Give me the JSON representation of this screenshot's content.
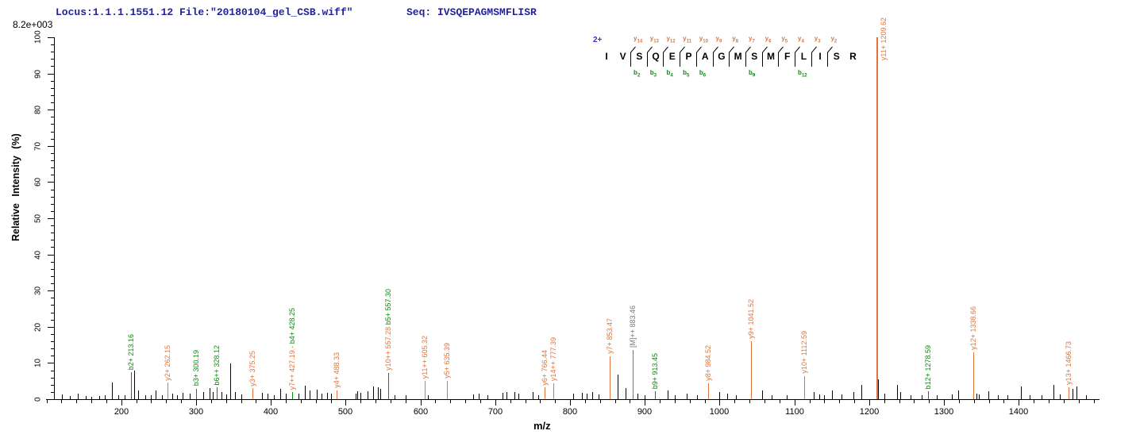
{
  "header": {
    "locus_file": "Locus:1.1.1.1551.12 File:\"20180104_gel_CSB.wiff\"",
    "seq": "Seq: IVSQEPAGMSMFLISR",
    "intensity_scale": "8.2e+003"
  },
  "peptide": {
    "charge": "2+",
    "residues": [
      "I",
      "V",
      "S",
      "Q",
      "E",
      "P",
      "A",
      "G",
      "M",
      "S",
      "M",
      "F",
      "L",
      "I",
      "S",
      "R"
    ],
    "y_ions": [
      {
        "site": 2,
        "num": "14"
      },
      {
        "site": 3,
        "num": "13"
      },
      {
        "site": 4,
        "num": "12"
      },
      {
        "site": 5,
        "num": "11"
      },
      {
        "site": 6,
        "num": "10"
      },
      {
        "site": 7,
        "num": "9"
      },
      {
        "site": 8,
        "num": "8"
      },
      {
        "site": 9,
        "num": "7"
      },
      {
        "site": 10,
        "num": "6"
      },
      {
        "site": 11,
        "num": "5"
      },
      {
        "site": 12,
        "num": "4"
      },
      {
        "site": 13,
        "num": "3"
      },
      {
        "site": 14,
        "num": "2"
      }
    ],
    "b_ions": [
      {
        "site": 2,
        "num": "2"
      },
      {
        "site": 3,
        "num": "3"
      },
      {
        "site": 4,
        "num": "4"
      },
      {
        "site": 5,
        "num": "5"
      },
      {
        "site": 6,
        "num": "6"
      },
      {
        "site": 9,
        "num": "9"
      },
      {
        "site": 12,
        "num": "12"
      }
    ]
  },
  "chart_data": {
    "type": "bar",
    "xlabel": "m/z",
    "ylabel": "Relative Intensity (%)",
    "x_axis": {
      "min": 100,
      "max": 1508,
      "major_step": 100,
      "label_min": 200,
      "label_max": 1400,
      "minor_step": 20
    },
    "y_axis": {
      "min": 0,
      "max": 100,
      "major_step": 10,
      "minor_step": 2
    },
    "legend": "none",
    "grid": false,
    "colors": {
      "y": "#E0743C",
      "b": "#0E8A0E",
      "precursor": "#777777",
      "unassigned": "#000000"
    },
    "peaks": [
      {
        "mz": 213.16,
        "intensity": 7.5,
        "type": "b",
        "label": "b2+ 213.16"
      },
      {
        "mz": 262.15,
        "intensity": 4.5,
        "type": "y",
        "label": "y2+ 262.15"
      },
      {
        "mz": 300.19,
        "intensity": 2.9,
        "type": "b",
        "label": "b3+ 300.19"
      },
      {
        "mz": 328.12,
        "intensity": 3.2,
        "type": "b",
        "label": "b6++ 328.12"
      },
      {
        "mz": 375.25,
        "intensity": 3.0,
        "type": "y",
        "label": "y3+ 375.25"
      },
      {
        "mz": 428.25,
        "intensity": 2.0,
        "type": "b",
        "label_parts": [
          {
            "text": "y7++ 427.19 - ",
            "type": "y"
          },
          {
            "text": "b4+ 428.25",
            "type": "b"
          }
        ]
      },
      {
        "mz": 488.33,
        "intensity": 2.5,
        "type": "y",
        "label": "y4+ 488.33"
      },
      {
        "mz": 557.3,
        "intensity": 7.2,
        "type": "b",
        "label_parts": [
          {
            "text": "y10++ 557.28 ",
            "type": "y"
          },
          {
            "text": "b5+ 557.30",
            "type": "b"
          }
        ]
      },
      {
        "mz": 605.32,
        "intensity": 5.0,
        "type": "y",
        "label": "y11++ 605.32"
      },
      {
        "mz": 635.39,
        "intensity": 5.0,
        "type": "y",
        "label": "y5+ 635.39"
      },
      {
        "mz": 766.44,
        "intensity": 3.2,
        "type": "y",
        "label": "y6+ 766.44"
      },
      {
        "mz": 777.39,
        "intensity": 4.3,
        "type": "y",
        "label": "y14++ 777.39"
      },
      {
        "mz": 853.47,
        "intensity": 11.8,
        "type": "y",
        "label": "y7+ 853.47"
      },
      {
        "mz": 883.46,
        "intensity": 13.6,
        "type": "precursor",
        "label": "[M]++ 883.46"
      },
      {
        "mz": 913.45,
        "intensity": 2.2,
        "type": "b",
        "label": "b9+ 913.45"
      },
      {
        "mz": 984.52,
        "intensity": 4.4,
        "type": "y",
        "label": "y8+ 984.52"
      },
      {
        "mz": 1041.52,
        "intensity": 16.0,
        "type": "y",
        "label": "y9+ 1041.52"
      },
      {
        "mz": 1112.59,
        "intensity": 6.4,
        "type": "y",
        "label": "y10+ 1112.59"
      },
      {
        "mz": 1209.62,
        "intensity": 100.0,
        "type": "y",
        "label": "y11+ 1209.62",
        "anchor": "top",
        "width": 2
      },
      {
        "mz": 1278.59,
        "intensity": 2.2,
        "type": "b",
        "label": "b12+ 1278.59"
      },
      {
        "mz": 1338.66,
        "intensity": 13.0,
        "type": "y",
        "label": "y12+ 1338.66"
      },
      {
        "mz": 1466.73,
        "intensity": 3.3,
        "type": "y",
        "label": "y13+ 1466.73"
      }
    ],
    "unassigned_peaks": [
      [
        110,
        0.8
      ],
      [
        121,
        1.3
      ],
      [
        131,
        0.8
      ],
      [
        142,
        1.6
      ],
      [
        152,
        0.9
      ],
      [
        160,
        0.7
      ],
      [
        170,
        0.8
      ],
      [
        178,
        1.0
      ],
      [
        187,
        4.6
      ],
      [
        196,
        1.0
      ],
      [
        205,
        1.2
      ],
      [
        217,
        8.0
      ],
      [
        222,
        2.5
      ],
      [
        232,
        1.0
      ],
      [
        240,
        1.2
      ],
      [
        246,
        2.5
      ],
      [
        254,
        1.0
      ],
      [
        268,
        1.5
      ],
      [
        275,
        1.2
      ],
      [
        282,
        1.8
      ],
      [
        292,
        1.5
      ],
      [
        310,
        2.0
      ],
      [
        318,
        3.0
      ],
      [
        322,
        2.0
      ],
      [
        334,
        2.0
      ],
      [
        340,
        1.4
      ],
      [
        346,
        9.9
      ],
      [
        352,
        2.0
      ],
      [
        360,
        1.3
      ],
      [
        388,
        1.8
      ],
      [
        396,
        1.5
      ],
      [
        404,
        1.2
      ],
      [
        412,
        2.9
      ],
      [
        420,
        1.5
      ],
      [
        437,
        1.5
      ],
      [
        445,
        3.7
      ],
      [
        452,
        2.4
      ],
      [
        461,
        2.6
      ],
      [
        468,
        1.5
      ],
      [
        475,
        1.8
      ],
      [
        480,
        1.5
      ],
      [
        513,
        1.5
      ],
      [
        516,
        2.3
      ],
      [
        520,
        1.8
      ],
      [
        529,
        2.2
      ],
      [
        537,
        3.5
      ],
      [
        543,
        3.2
      ],
      [
        546,
        2.8
      ],
      [
        565,
        1.2
      ],
      [
        580,
        1.0
      ],
      [
        610,
        1.0
      ],
      [
        670,
        1.3
      ],
      [
        678,
        1.5
      ],
      [
        690,
        1.0
      ],
      [
        710,
        1.7
      ],
      [
        715,
        2.0
      ],
      [
        726,
        2.0
      ],
      [
        731,
        1.5
      ],
      [
        750,
        2.0
      ],
      [
        758,
        1.2
      ],
      [
        804,
        1.5
      ],
      [
        816,
        1.8
      ],
      [
        822,
        1.5
      ],
      [
        830,
        2.0
      ],
      [
        838,
        1.3
      ],
      [
        864,
        6.8
      ],
      [
        874,
        3.0
      ],
      [
        890,
        1.5
      ],
      [
        900,
        1.2
      ],
      [
        930,
        2.5
      ],
      [
        940,
        1.2
      ],
      [
        956,
        1.5
      ],
      [
        970,
        1.1
      ],
      [
        999,
        2.0
      ],
      [
        1010,
        1.5
      ],
      [
        1022,
        1.2
      ],
      [
        1057,
        2.5
      ],
      [
        1070,
        1.2
      ],
      [
        1090,
        1.0
      ],
      [
        1126,
        2.0
      ],
      [
        1133,
        1.4
      ],
      [
        1140,
        1.2
      ],
      [
        1150,
        2.5
      ],
      [
        1163,
        1.3
      ],
      [
        1179,
        2.0
      ],
      [
        1190,
        4.0
      ],
      [
        1212,
        5.5
      ],
      [
        1220,
        1.5
      ],
      [
        1237,
        4.0
      ],
      [
        1241,
        2.0
      ],
      [
        1255,
        1.2
      ],
      [
        1270,
        1.0
      ],
      [
        1290,
        1.1
      ],
      [
        1310,
        1.3
      ],
      [
        1319,
        2.4
      ],
      [
        1343,
        1.5
      ],
      [
        1347,
        1.3
      ],
      [
        1359,
        2.2
      ],
      [
        1372,
        1.2
      ],
      [
        1385,
        1.0
      ],
      [
        1403,
        3.5
      ],
      [
        1415,
        1.2
      ],
      [
        1430,
        1.0
      ],
      [
        1446,
        4.0
      ],
      [
        1455,
        1.3
      ],
      [
        1472,
        2.8
      ],
      [
        1477,
        3.5
      ],
      [
        1490,
        1.2
      ]
    ]
  }
}
